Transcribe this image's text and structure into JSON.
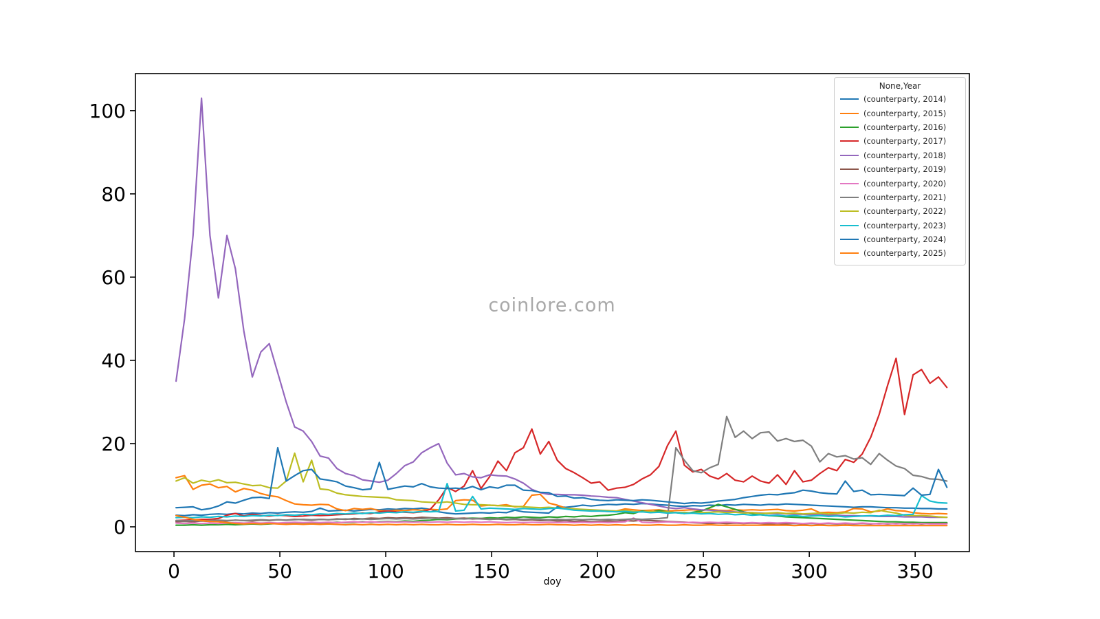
{
  "watermark": "coinlore.com",
  "axes": {
    "xlabel": "doy",
    "x_ticks": [
      0,
      50,
      100,
      150,
      200,
      250,
      300,
      350
    ],
    "y_ticks": [
      0,
      20,
      40,
      60,
      80,
      100
    ]
  },
  "legend": {
    "title": "None,Year"
  },
  "chart_data": {
    "type": "line",
    "title": "",
    "xlabel": "doy",
    "ylabel": "",
    "xlim": [
      -18.2,
      375.6
    ],
    "ylim": [
      -5.95,
      108.9
    ],
    "grid": false,
    "legend_position": "upper right",
    "legend_title": "None,Year",
    "x": [
      1,
      5,
      9,
      13,
      17,
      21,
      25,
      29,
      33,
      37,
      41,
      45,
      49,
      53,
      57,
      61,
      65,
      69,
      73,
      77,
      81,
      85,
      89,
      93,
      97,
      101,
      105,
      109,
      113,
      117,
      121,
      125,
      129,
      133,
      137,
      141,
      145,
      149,
      153,
      157,
      161,
      165,
      169,
      173,
      177,
      181,
      185,
      189,
      193,
      197,
      201,
      205,
      209,
      213,
      217,
      221,
      225,
      229,
      233,
      237,
      241,
      245,
      249,
      253,
      257,
      261,
      265,
      269,
      273,
      277,
      281,
      285,
      289,
      293,
      297,
      301,
      305,
      309,
      313,
      317,
      321,
      325,
      329,
      333,
      337,
      341,
      345,
      349,
      353,
      357,
      361,
      365
    ],
    "series": [
      {
        "name": "(counterparty, 2014)",
        "color": "#1f77b4",
        "values": [
          2.8,
          2.7,
          2.9,
          2.8,
          3.0,
          3.1,
          3.0,
          3.2,
          3.1,
          3.3,
          3.2,
          3.4,
          3.3,
          3.5,
          3.6,
          3.5,
          3.7,
          4.5,
          3.8,
          3.9,
          4.0,
          3.8,
          4.0,
          4.2,
          4.1,
          4.3,
          4.2,
          4.4,
          4.3,
          4.5,
          4.2,
          3.6,
          3.3,
          3.1,
          3.2,
          3.3,
          3.4,
          3.3,
          3.5,
          3.4,
          4.0,
          3.6,
          3.5,
          3.4,
          3.3,
          4.8,
          4.7,
          4.9,
          5.2,
          5.0,
          5.2,
          5.4,
          5.3,
          5.5,
          5.4,
          5.6,
          5.5,
          5.3,
          5.2,
          5.0,
          4.9,
          5.1,
          5.0,
          5.2,
          5.1,
          5.3,
          5.2,
          5.4,
          5.3,
          5.2,
          5.4,
          5.3,
          5.5,
          5.4,
          5.3,
          5.2,
          5.1,
          5.0,
          4.9,
          4.8,
          4.7,
          4.8,
          4.8,
          4.7,
          4.6,
          4.6,
          4.5,
          4.5,
          4.4,
          4.4,
          4.3,
          4.3
        ]
      },
      {
        "name": "(counterparty, 2015)",
        "color": "#ff7f0e",
        "values": [
          11.8,
          12.3,
          9.0,
          10.0,
          10.3,
          9.4,
          9.7,
          8.4,
          9.2,
          8.8,
          8.0,
          7.5,
          7.2,
          6.3,
          5.5,
          5.3,
          5.2,
          5.4,
          5.3,
          4.3,
          3.9,
          4.4,
          4.2,
          4.4,
          3.9,
          3.8,
          4.0,
          3.9,
          4.1,
          4.0,
          4.2,
          4.1,
          4.3,
          6.3,
          6.5,
          6.4,
          5.0,
          5.2,
          5.1,
          5.3,
          4.8,
          4.9,
          7.6,
          7.8,
          5.7,
          5.2,
          4.5,
          4.3,
          4.1,
          3.8,
          3.8,
          3.7,
          3.8,
          4.3,
          4.1,
          3.9,
          4.0,
          4.1,
          3.8,
          3.9,
          4.0,
          4.1,
          3.9,
          4.2,
          4.0,
          3.9,
          4.1,
          4.0,
          4.1,
          4.0,
          4.1,
          4.2,
          3.9,
          3.8,
          4.0,
          4.3,
          3.4,
          3.5,
          3.4,
          3.6,
          4.4,
          4.3,
          3.6,
          3.8,
          4.3,
          3.9,
          3.8,
          3.4,
          3.2,
          3.1,
          3.2,
          3.1
        ]
      },
      {
        "name": "(counterparty, 2016)",
        "color": "#2ca02c",
        "values": [
          0.4,
          0.4,
          0.5,
          0.4,
          0.5,
          0.5,
          0.6,
          0.5,
          0.6,
          0.7,
          0.6,
          0.7,
          0.8,
          0.7,
          0.8,
          0.9,
          1.0,
          0.9,
          1.0,
          1.1,
          1.0,
          1.1,
          1.2,
          1.1,
          1.2,
          1.3,
          1.2,
          1.4,
          1.3,
          1.5,
          1.6,
          1.8,
          1.7,
          1.9,
          2.0,
          2.1,
          2.0,
          2.2,
          2.1,
          2.3,
          2.2,
          2.4,
          2.3,
          2.2,
          2.4,
          2.3,
          2.5,
          2.4,
          2.6,
          2.5,
          2.7,
          2.8,
          3.0,
          3.4,
          3.2,
          3.8,
          3.5,
          3.9,
          3.6,
          3.4,
          3.2,
          3.5,
          3.8,
          4.6,
          5.4,
          4.8,
          4.2,
          3.6,
          3.2,
          2.9,
          2.7,
          2.6,
          2.4,
          2.3,
          2.2,
          2.1,
          2.0,
          1.9,
          1.8,
          1.7,
          1.6,
          1.5,
          1.4,
          1.3,
          1.2,
          1.2,
          1.1,
          1.1,
          1.0,
          1.0,
          1.0,
          1.0
        ]
      },
      {
        "name": "(counterparty, 2017)",
        "color": "#d62728",
        "values": [
          1.5,
          1.6,
          1.7,
          1.8,
          1.8,
          2.0,
          2.8,
          3.2,
          2.6,
          3.0,
          2.7,
          2.6,
          2.8,
          2.7,
          2.5,
          2.6,
          2.8,
          2.7,
          2.8,
          2.9,
          3.0,
          3.1,
          3.3,
          3.2,
          3.6,
          3.8,
          3.6,
          3.5,
          3.4,
          3.6,
          4.2,
          6.5,
          9.5,
          8.5,
          9.8,
          13.5,
          9.2,
          12.0,
          15.8,
          13.5,
          17.8,
          19.0,
          23.5,
          17.5,
          20.5,
          16.0,
          14.0,
          13.0,
          11.8,
          10.5,
          10.8,
          8.8,
          9.3,
          9.5,
          10.2,
          11.5,
          12.5,
          14.5,
          19.5,
          23.0,
          14.8,
          13.2,
          13.8,
          12.2,
          11.5,
          12.8,
          11.2,
          10.8,
          12.2,
          11.0,
          10.5,
          12.5,
          10.2,
          13.5,
          10.8,
          11.2,
          12.8,
          14.2,
          13.5,
          16.2,
          15.5,
          17.5,
          21.5,
          27.0,
          34.0,
          40.5,
          27.0,
          36.5,
          37.8,
          34.5,
          36.0,
          33.5
        ]
      },
      {
        "name": "(counterparty, 2018)",
        "color": "#9467bd",
        "values": [
          35,
          50,
          70,
          103,
          70,
          55,
          70,
          62,
          47,
          36,
          42,
          44,
          37,
          30,
          24,
          23,
          20.5,
          17,
          16.5,
          14,
          12.8,
          12.3,
          11.3,
          11.0,
          10.7,
          11.2,
          12.8,
          14.7,
          15.6,
          17.8,
          19.0,
          20.0,
          15.3,
          12.5,
          12.8,
          12.0,
          11.8,
          12.5,
          12.3,
          12.2,
          11.5,
          10.5,
          9.0,
          8.2,
          7.8,
          7.8,
          7.7,
          7.7,
          7.6,
          7.4,
          7.3,
          7.1,
          7.0,
          6.6,
          6.2,
          5.8,
          5.4,
          5.0,
          4.6,
          4.4,
          4.6,
          4.3,
          4.1,
          4.0,
          3.8,
          3.7,
          3.6,
          3.5,
          3.4,
          3.3,
          3.2,
          3.2,
          3.1,
          3.0,
          3.0,
          2.9,
          2.9,
          2.8,
          2.8,
          2.7,
          2.7,
          2.6,
          2.6,
          2.5,
          2.5,
          2.5,
          2.4,
          2.4,
          2.4,
          2.3,
          2.3,
          2.3
        ]
      },
      {
        "name": "(counterparty, 2019)",
        "color": "#8c564b",
        "values": [
          1.2,
          1.3,
          1.2,
          1.4,
          1.3,
          1.5,
          1.4,
          1.6,
          1.5,
          1.4,
          1.6,
          1.5,
          1.7,
          1.6,
          1.8,
          1.7,
          1.6,
          1.8,
          1.7,
          1.9,
          1.8,
          2.0,
          1.9,
          2.1,
          2.0,
          2.2,
          2.1,
          2.2,
          2.1,
          2.3,
          2.2,
          2.1,
          2.2,
          2.0,
          2.1,
          1.9,
          2.0,
          1.8,
          1.9,
          1.7,
          1.8,
          1.6,
          1.7,
          1.5,
          1.6,
          1.4,
          1.5,
          1.3,
          1.4,
          1.2,
          1.3,
          1.4,
          1.3,
          1.5,
          1.4,
          1.6,
          1.5,
          1.4,
          1.3,
          1.2,
          1.1,
          1.0,
          0.9,
          0.8,
          0.9,
          0.8,
          0.9,
          0.8,
          0.9,
          0.8,
          0.7,
          0.8,
          0.7,
          0.8,
          0.7,
          0.8,
          0.7,
          0.8,
          0.7,
          0.8,
          0.7,
          0.8,
          0.7,
          0.8,
          0.7,
          0.8,
          0.7,
          0.8,
          0.7,
          0.8,
          0.8,
          0.8
        ]
      },
      {
        "name": "(counterparty, 2020)",
        "color": "#e377c2",
        "values": [
          0.9,
          0.8,
          0.9,
          0.8,
          0.9,
          0.8,
          0.9,
          1.0,
          0.9,
          1.0,
          0.9,
          1.0,
          0.9,
          1.0,
          1.1,
          1.0,
          1.1,
          1.0,
          1.1,
          1.0,
          1.1,
          1.2,
          1.1,
          1.2,
          1.1,
          1.2,
          1.1,
          1.2,
          1.1,
          1.2,
          1.1,
          1.2,
          1.1,
          1.2,
          1.1,
          1.2,
          1.1,
          1.2,
          1.1,
          1.0,
          1.1,
          1.0,
          1.1,
          1.0,
          1.1,
          1.0,
          1.1,
          1.0,
          1.1,
          1.0,
          1.1,
          1.0,
          1.1,
          1.2,
          2.1,
          1.1,
          1.0,
          1.1,
          1.2,
          1.1,
          1.0,
          1.1,
          1.0,
          1.1,
          1.0,
          1.1,
          1.0,
          0.9,
          1.0,
          0.9,
          1.0,
          0.9,
          1.0,
          0.9,
          0.8,
          0.9,
          0.8,
          0.9,
          0.8,
          0.9,
          0.8,
          0.9,
          0.8,
          0.7,
          0.8,
          0.7,
          0.8,
          0.7,
          0.8,
          0.7,
          0.7,
          0.7
        ]
      },
      {
        "name": "(counterparty, 2021)",
        "color": "#7f7f7f",
        "values": [
          1.5,
          1.4,
          1.5,
          1.4,
          1.5,
          1.6,
          1.5,
          1.6,
          1.5,
          1.6,
          1.7,
          1.6,
          1.7,
          1.6,
          1.7,
          1.8,
          1.7,
          1.8,
          1.7,
          1.8,
          1.9,
          1.8,
          1.9,
          1.8,
          1.9,
          2.0,
          1.9,
          2.0,
          1.9,
          2.0,
          2.1,
          2.0,
          1.9,
          2.0,
          1.9,
          2.0,
          1.9,
          1.8,
          1.9,
          1.8,
          1.9,
          1.8,
          1.9,
          1.8,
          1.7,
          1.8,
          1.7,
          1.8,
          1.7,
          1.8,
          1.7,
          1.8,
          1.7,
          1.8,
          1.9,
          1.8,
          1.9,
          2.0,
          2.2,
          19.0,
          16.0,
          13.5,
          13.0,
          14.2,
          15.0,
          26.5,
          21.5,
          23.0,
          21.2,
          22.6,
          22.8,
          20.6,
          21.2,
          20.5,
          20.8,
          19.4,
          15.6,
          17.6,
          16.8,
          17.1,
          16.3,
          16.6,
          15.0,
          17.6,
          16.0,
          14.6,
          14.0,
          12.4,
          12.1,
          11.5,
          11.4,
          11.0
        ]
      },
      {
        "name": "(counterparty, 2022)",
        "color": "#bcbd22",
        "values": [
          11.0,
          11.8,
          10.5,
          11.2,
          10.8,
          11.3,
          10.6,
          10.7,
          10.3,
          9.9,
          10.0,
          9.4,
          9.3,
          11.0,
          17.7,
          10.8,
          16.0,
          9.1,
          8.9,
          8.1,
          7.7,
          7.5,
          7.3,
          7.2,
          7.1,
          7.0,
          6.5,
          6.4,
          6.3,
          6.0,
          5.9,
          5.8,
          6.0,
          5.7,
          5.4,
          5.3,
          5.3,
          5.2,
          5.1,
          5.0,
          4.9,
          4.8,
          4.7,
          4.6,
          4.7,
          4.5,
          4.4,
          4.3,
          4.2,
          4.1,
          4.0,
          3.9,
          3.8,
          3.9,
          3.7,
          3.6,
          3.7,
          3.5,
          3.6,
          3.4,
          3.5,
          3.3,
          3.4,
          3.5,
          3.6,
          3.4,
          3.5,
          3.3,
          3.4,
          3.2,
          3.3,
          3.4,
          3.2,
          3.3,
          3.1,
          3.2,
          3.3,
          3.1,
          3.2,
          3.4,
          3.3,
          3.5,
          3.4,
          4.0,
          3.6,
          3.3,
          2.8,
          2.7,
          2.7,
          2.6,
          2.4,
          2.3
        ]
      },
      {
        "name": "(counterparty, 2023)",
        "color": "#17becf",
        "values": [
          2.2,
          2.3,
          2.2,
          2.4,
          2.3,
          2.5,
          2.4,
          2.6,
          2.5,
          2.7,
          2.6,
          2.8,
          2.7,
          2.9,
          2.8,
          3.0,
          2.9,
          3.1,
          3.0,
          3.2,
          3.1,
          3.3,
          3.2,
          3.4,
          3.3,
          3.5,
          3.4,
          3.6,
          3.5,
          3.7,
          3.6,
          3.7,
          10.4,
          3.8,
          4.0,
          7.3,
          4.3,
          4.5,
          4.4,
          4.3,
          4.2,
          4.4,
          4.3,
          4.2,
          4.4,
          4.5,
          4.3,
          4.0,
          3.9,
          3.8,
          3.8,
          3.7,
          3.6,
          3.7,
          3.5,
          3.6,
          3.4,
          3.5,
          3.3,
          3.4,
          3.2,
          3.3,
          3.1,
          3.2,
          3.0,
          3.1,
          2.9,
          3.0,
          2.8,
          2.9,
          2.7,
          2.8,
          2.6,
          2.7,
          2.5,
          2.6,
          2.7,
          2.5,
          2.6,
          2.4,
          2.5,
          2.6,
          2.7,
          2.6,
          2.8,
          2.7,
          2.9,
          3.0,
          7.5,
          6.2,
          5.8,
          5.7
        ]
      },
      {
        "name": "(counterparty, 2024)",
        "color": "#1f77b4",
        "values": [
          4.6,
          4.7,
          4.8,
          4.1,
          4.4,
          5.0,
          6.0,
          5.7,
          6.4,
          7.0,
          7.1,
          6.8,
          19.0,
          11.0,
          12.3,
          13.5,
          13.8,
          11.5,
          11.2,
          10.8,
          9.8,
          9.4,
          8.9,
          9.1,
          15.5,
          9.0,
          9.4,
          9.8,
          9.6,
          10.4,
          9.6,
          9.3,
          9.2,
          9.3,
          9.1,
          9.7,
          8.9,
          9.6,
          9.3,
          10.0,
          10.0,
          8.8,
          8.7,
          8.3,
          8.2,
          7.3,
          7.4,
          6.9,
          7.0,
          6.6,
          6.4,
          6.3,
          6.5,
          6.4,
          6.3,
          6.5,
          6.4,
          6.2,
          6.0,
          5.8,
          5.6,
          5.8,
          5.7,
          5.9,
          6.2,
          6.4,
          6.6,
          7.0,
          7.3,
          7.6,
          7.8,
          7.7,
          8.0,
          8.2,
          8.8,
          8.6,
          8.2,
          8.0,
          7.9,
          11.0,
          8.5,
          8.8,
          7.7,
          7.8,
          7.7,
          7.6,
          7.5,
          9.3,
          7.6,
          7.8,
          13.8,
          9.5
        ]
      },
      {
        "name": "(counterparty, 2025)",
        "color": "#ff7f0e",
        "values": [
          2.7,
          2.3,
          1.8,
          1.5,
          1.3,
          1.2,
          1.0,
          0.8,
          0.7,
          0.8,
          0.7,
          0.8,
          0.7,
          0.6,
          0.7,
          0.6,
          0.7,
          0.6,
          0.7,
          0.6,
          0.5,
          0.6,
          0.5,
          0.6,
          0.5,
          0.6,
          0.5,
          0.6,
          0.5,
          0.6,
          0.5,
          0.5,
          0.6,
          0.5,
          0.5,
          0.6,
          0.5,
          0.5,
          0.6,
          0.5,
          0.5,
          0.6,
          0.5,
          0.5,
          0.6,
          0.5,
          0.5,
          0.4,
          0.5,
          0.4,
          0.5,
          0.4,
          0.5,
          0.4,
          0.5,
          0.4,
          0.4,
          0.5,
          0.4,
          0.4,
          0.5,
          0.4,
          0.4,
          0.5,
          0.4,
          0.4,
          0.4,
          0.4,
          0.4,
          0.4,
          0.4,
          0.4,
          0.4,
          0.3,
          0.4,
          0.3,
          0.4,
          0.3,
          0.3,
          0.4,
          0.3,
          0.3,
          0.3,
          0.3,
          0.3,
          0.3,
          0.3,
          0.3,
          0.3,
          0.3,
          0.3,
          0.3
        ]
      }
    ]
  }
}
